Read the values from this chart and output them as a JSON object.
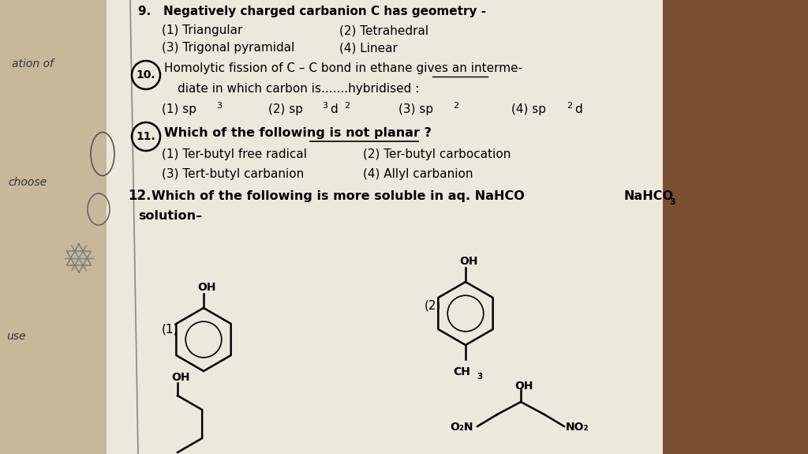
{
  "bg_left_color": "#c8b89a",
  "bg_right_color": "#7a4f30",
  "paper_color": "#ede8dc",
  "left_text1": "ation of",
  "left_text2": "choose",
  "left_text3": "use",
  "q9_line": "9.   Negatively charged carbanion C has geometry -",
  "q9_opt1": "(1) Triangular",
  "q9_opt2": "(2) Tetrahedral",
  "q9_opt3": "(3) Trigonal pyramidal",
  "q9_opt4": "(4) Linear",
  "q10_num": "10.",
  "q10_text1": "Homolytic fission of C – C bond in ethane gives an interme-",
  "q10_text2": "diate in which carbon is.......hybridised :",
  "q11_num": "11.",
  "q11_text": "Which of the following is not planar ?",
  "q11_opt1": "(1) Ter-butyl free radical",
  "q11_opt2": "(2) Ter-butyl carbocation",
  "q11_opt3": "(3) Tert-butyl carbanion",
  "q11_opt4": "(4) Allyl carbanion",
  "q12_num": "12.",
  "q12_text": "Which of the following is more soluble in aq. NaHCO",
  "q12_sol": "solution–",
  "fig_width": 10.24,
  "fig_height": 5.75,
  "dpi": 100
}
